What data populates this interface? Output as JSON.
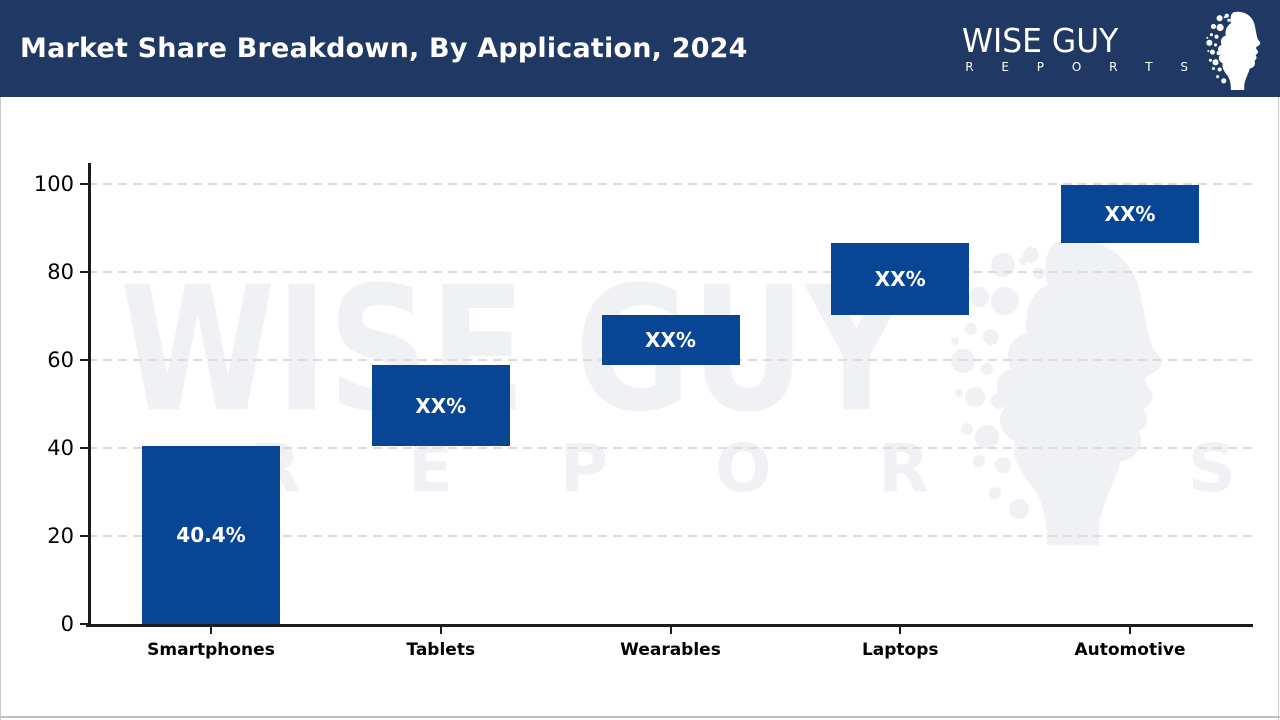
{
  "header": {
    "title": "Market Share Breakdown, By Application, 2024",
    "background_color": "#1F3864",
    "logo": {
      "name": "WISE GUY",
      "tagline": "R E P O R T S"
    }
  },
  "watermark": {
    "line1": "WISE GUY",
    "line2": "R E P O R T S"
  },
  "chart_data": {
    "type": "bar",
    "subtype": "waterfall",
    "title": "Market Share Breakdown, By Application, 2024",
    "categories": [
      "Smartphones",
      "Tablets",
      "Wearables",
      "Laptops",
      "Automotive"
    ],
    "segments": [
      {
        "category": "Smartphones",
        "start": 0,
        "end": 40.4,
        "label": "40.4%"
      },
      {
        "category": "Tablets",
        "start": 40.4,
        "end": 58.8,
        "label": "XX%"
      },
      {
        "category": "Wearables",
        "start": 58.8,
        "end": 70.2,
        "label": "XX%"
      },
      {
        "category": "Laptops",
        "start": 70.2,
        "end": 86.5,
        "label": "XX%"
      },
      {
        "category": "Automotive",
        "start": 86.5,
        "end": 99.8,
        "label": "XX%"
      }
    ],
    "y_ticks": [
      0,
      20,
      40,
      60,
      80,
      100
    ],
    "ylim": [
      0,
      104
    ],
    "xlabel": "",
    "ylabel": "",
    "grid": "horizontal-dashed",
    "legend": "none",
    "bar_color": "#084595",
    "bar_label_color": "#ffffff",
    "axis_color": "#1c1c1c",
    "grid_color": "#dcdcdc"
  }
}
